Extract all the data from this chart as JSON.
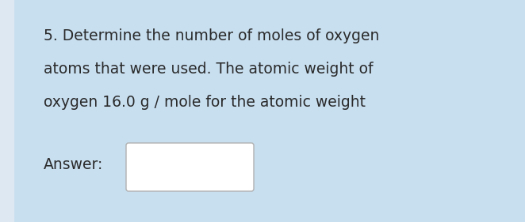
{
  "background_color": "#c8dff0",
  "left_margin_color": "#f0f0f0",
  "text_lines": [
    "5. Determine the number of moles of oxygen",
    "atoms that were used. The atomic weight of",
    "oxygen 16.0 g / mole for the atomic weight"
  ],
  "answer_label": "Answer:",
  "text_color": "#2a2a2a",
  "text_fontsize": 13.5,
  "text_fontweight": "normal",
  "font_family": "DejaVu Sans",
  "box_facecolor": "#ffffff",
  "box_edgecolor": "#b0b0b0",
  "fig_width": 6.62,
  "fig_height": 2.81,
  "dpi": 100
}
